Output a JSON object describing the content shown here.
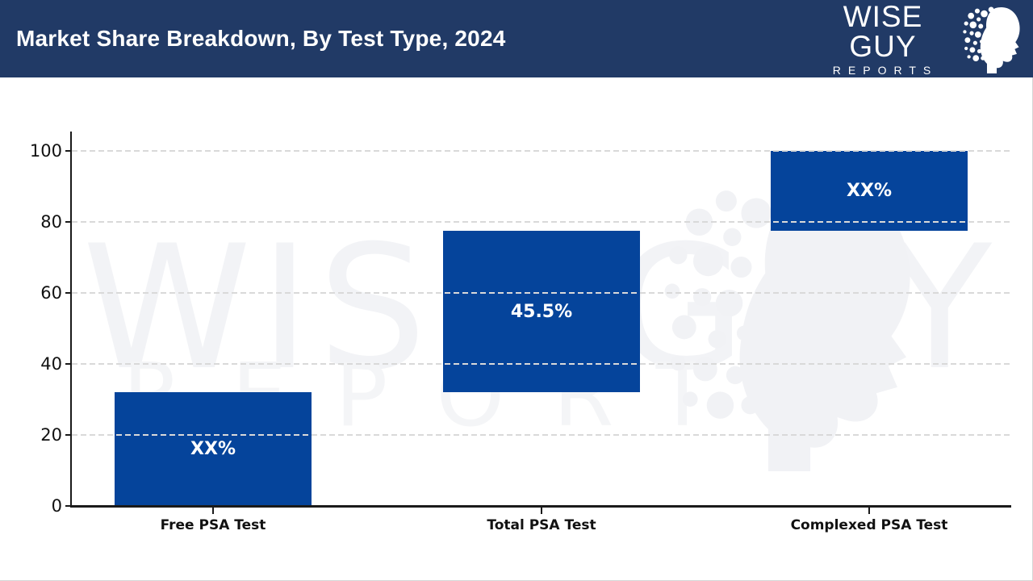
{
  "header": {
    "title": "Market Share Breakdown, By Test Type, 2024",
    "logo": {
      "line1": "WISE GUY",
      "line2": "REPORTS"
    }
  },
  "watermark": {
    "line1": "WISE GUY",
    "line2": "REPORTS"
  },
  "chart_data": {
    "type": "bar",
    "style": "floating-waterfall",
    "title": "Market Share Breakdown, By Test Type, 2024",
    "categories": [
      "Free PSA Test",
      "Total PSA Test",
      "Complexed PSA Test"
    ],
    "segments": [
      {
        "category": "Free PSA Test",
        "start": 0,
        "end": 32,
        "label": "XX%"
      },
      {
        "category": "Total PSA Test",
        "start": 32,
        "end": 77.5,
        "label": "45.5%"
      },
      {
        "category": "Complexed PSA Test",
        "start": 77.5,
        "end": 100,
        "label": "XX%"
      }
    ],
    "values_displayed": [
      "XX%",
      "45.5%",
      "XX%"
    ],
    "yticks": [
      0,
      20,
      40,
      60,
      80,
      100
    ],
    "ylim": [
      0,
      105.5
    ],
    "xlabel": "",
    "ylabel": "",
    "grid": true,
    "grid_style": "dashed",
    "legend": "none",
    "bar_color": "#05449B",
    "bar_label_color": "#ffffff",
    "header_color": "#213A66"
  }
}
